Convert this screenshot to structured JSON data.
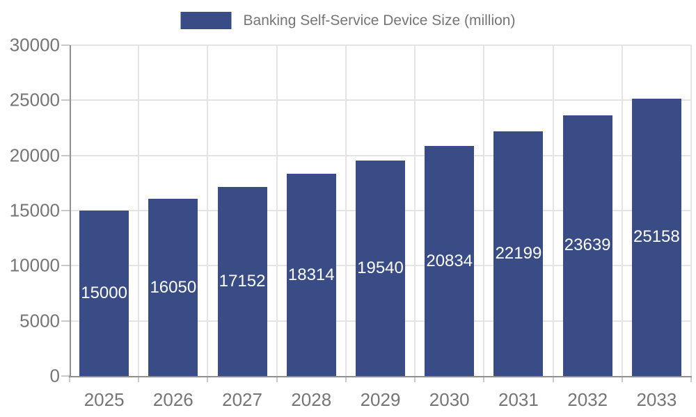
{
  "legend": {
    "label": "Banking Self-Service Device Size (million)"
  },
  "chart_data": {
    "type": "bar",
    "title": "",
    "series_name": "Banking Self-Service Device Size (million)",
    "categories": [
      "2025",
      "2026",
      "2027",
      "2028",
      "2029",
      "2030",
      "2031",
      "2032",
      "2033"
    ],
    "values": [
      15000,
      16050,
      17152,
      18314,
      19540,
      20834,
      22199,
      23639,
      25158
    ],
    "xlabel": "",
    "ylabel": "",
    "ylim": [
      0,
      30000
    ],
    "yticks": [
      0,
      5000,
      10000,
      15000,
      20000,
      25000,
      30000
    ],
    "grid": true,
    "legend_position": "top",
    "colors": {
      "bar": "#3A4C86",
      "bar_label": "#ffffff",
      "grid": "#e4e4e4",
      "axis": "#8f8f8f",
      "tick": "#c9c9c9",
      "text": "#757575"
    }
  }
}
